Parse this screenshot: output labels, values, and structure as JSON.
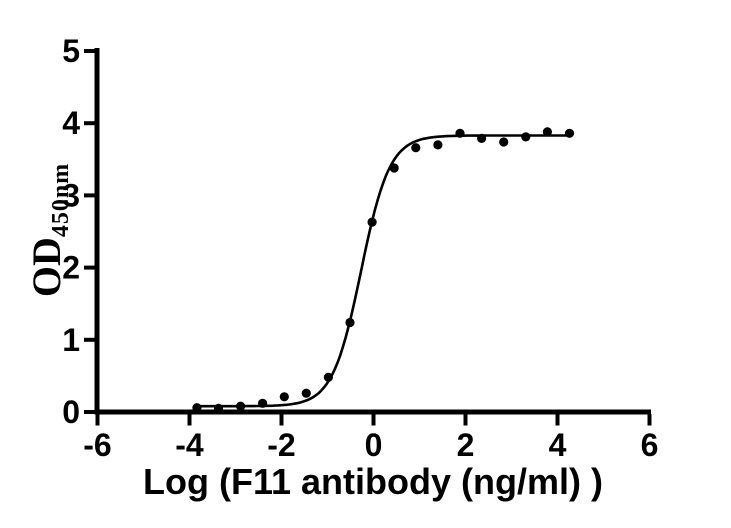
{
  "page": {
    "background": "#ffffff"
  },
  "chart_data": {
    "type": "scatter",
    "title": "",
    "xlabel": "Log (F11 antibody (ng/ml) )",
    "ylabel": "OD450nm",
    "ylabel_main": "OD",
    "ylabel_sub": "450nm",
    "xlim": [
      -6,
      6
    ],
    "ylim": [
      0,
      5
    ],
    "x_ticks": [
      -6,
      -4,
      -2,
      0,
      2,
      4,
      6
    ],
    "y_ticks": [
      0,
      1,
      2,
      3,
      4,
      5
    ],
    "grid": false,
    "legend_position": "none",
    "x": [
      -3.84,
      -3.37,
      -2.89,
      -2.41,
      -1.94,
      -1.46,
      -0.98,
      -0.51,
      -0.03,
      0.45,
      0.92,
      1.4,
      1.88,
      2.35,
      2.83,
      3.31,
      3.78,
      4.26
    ],
    "y": [
      0.06,
      0.05,
      0.08,
      0.12,
      0.21,
      0.26,
      0.48,
      1.24,
      2.63,
      3.38,
      3.66,
      3.7,
      3.86,
      3.79,
      3.74,
      3.81,
      3.88,
      3.86
    ],
    "fit_curve": {
      "model": "4PL sigmoidal",
      "bottom": 0.08,
      "top": 3.83,
      "log_ec50": -0.27,
      "hill_slope": 1.4,
      "x_start": -3.88,
      "x_end": 4.3
    },
    "colors": {
      "points": "#000000",
      "curve": "#000000",
      "axis": "#000000",
      "text": "#000000",
      "background": "#ffffff"
    }
  }
}
